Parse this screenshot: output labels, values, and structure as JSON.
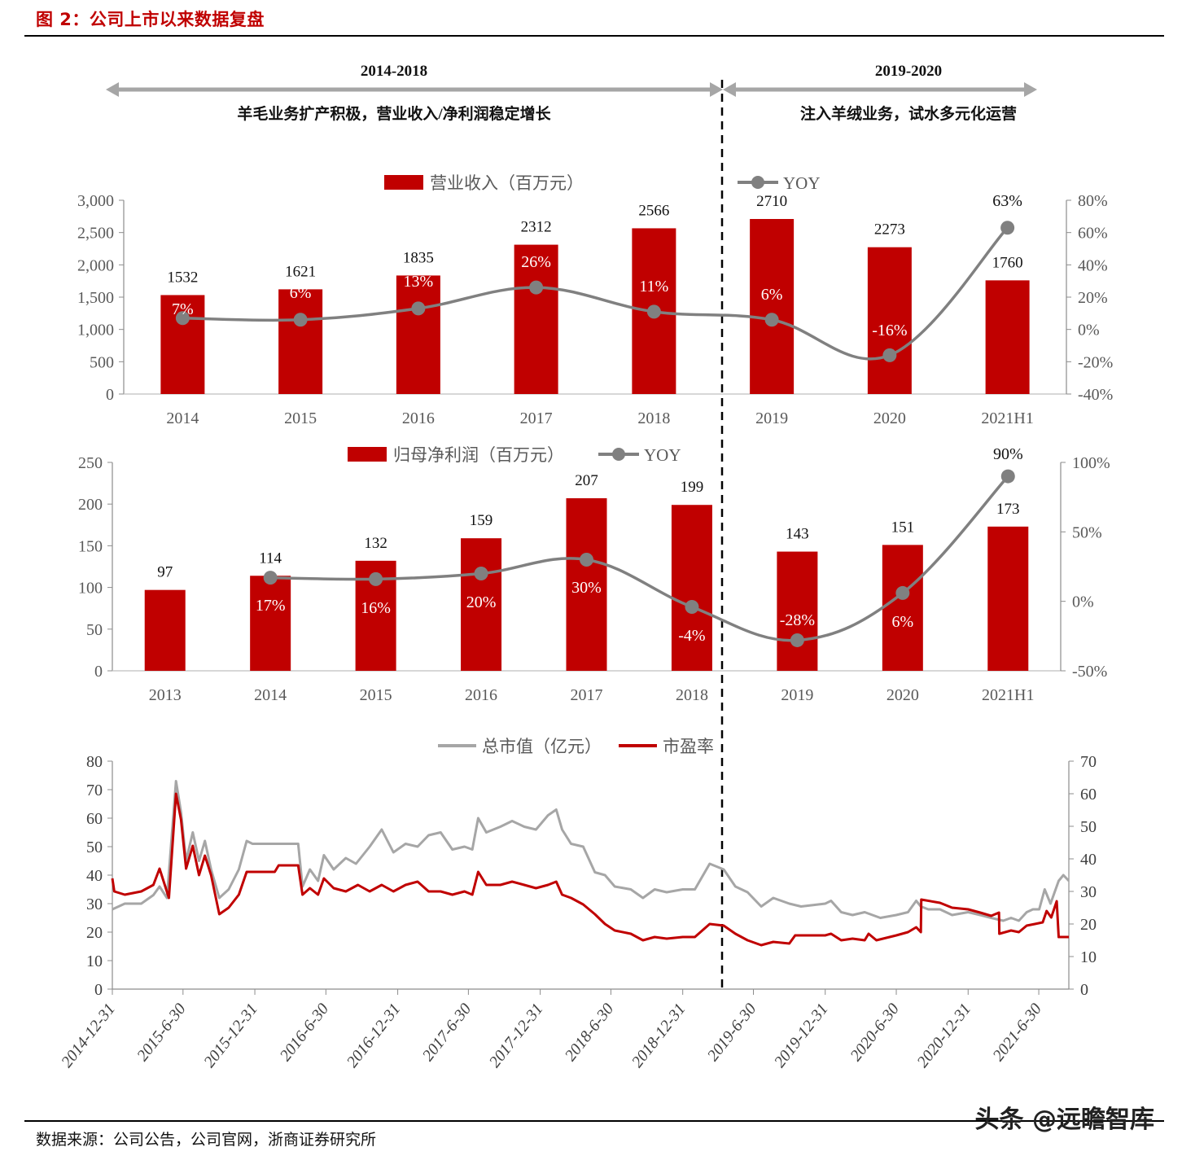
{
  "figure": {
    "title": "图 2：公司上市以来数据复盘",
    "source": "数据来源：公司公告，公司官网，浙商证券研究所",
    "watermark": "头条 @远瞻智库",
    "colors": {
      "bar": "#c00000",
      "yoy_line": "#808080",
      "market_cap": "#a6a6a6",
      "pe": "#c00000",
      "title": "#c00000"
    }
  },
  "timeline": {
    "periods": [
      {
        "label": "2014-2018",
        "description": "羊毛业务扩产积极，营业收入/净利润稳定增长"
      },
      {
        "label": "2019-2020",
        "description": "注入羊绒业务，试水多元化运营"
      }
    ]
  },
  "chart_data": [
    {
      "type": "bar",
      "title": "营业收入及YOY",
      "legend": [
        "营业收入（百万元）",
        "YOY"
      ],
      "legend_position": "top",
      "categories": [
        "2014",
        "2015",
        "2016",
        "2017",
        "2018",
        "2019",
        "2020",
        "2021H1"
      ],
      "series": [
        {
          "name": "营业收入（百万元）",
          "type": "bar",
          "axis": "left",
          "values": [
            1532,
            1621,
            1835,
            2312,
            2566,
            2710,
            2273,
            1760
          ],
          "labels": [
            "1532",
            "1621",
            "1835",
            "2312",
            "2566",
            "2710",
            "2273",
            "1760"
          ]
        },
        {
          "name": "YOY",
          "type": "line",
          "axis": "right",
          "values": [
            7,
            6,
            13,
            26,
            11,
            6,
            -16,
            63
          ],
          "labels": [
            "7%",
            "6%",
            "13%",
            "26%",
            "11%",
            "6%",
            "-16%",
            "63%"
          ]
        }
      ],
      "ylim": [
        0,
        3000
      ],
      "yticks": [
        "0",
        "500",
        "1,000",
        "1,500",
        "2,000",
        "2,500",
        "3,000"
      ],
      "y2lim": [
        -40,
        80
      ],
      "y2ticks": [
        "-40%",
        "-20%",
        "0%",
        "20%",
        "40%",
        "60%",
        "80%"
      ],
      "grid": false
    },
    {
      "type": "bar",
      "title": "归母净利润及YOY",
      "legend": [
        "归母净利润（百万元）",
        "YOY"
      ],
      "legend_position": "top",
      "categories": [
        "2013",
        "2014",
        "2015",
        "2016",
        "2017",
        "2018",
        "2019",
        "2020",
        "2021H1"
      ],
      "series": [
        {
          "name": "归母净利润（百万元）",
          "type": "bar",
          "axis": "left",
          "values": [
            97,
            114,
            132,
            159,
            207,
            199,
            143,
            151,
            173
          ],
          "labels": [
            "97",
            "114",
            "132",
            "159",
            "207",
            "199",
            "143",
            "151",
            "173"
          ]
        },
        {
          "name": "YOY",
          "type": "line",
          "axis": "right",
          "values": [
            null,
            17,
            16,
            20,
            30,
            -4,
            -28,
            6,
            90
          ],
          "labels": [
            "",
            "17%",
            "16%",
            "20%",
            "30%",
            "-4%",
            "-28%",
            "6%",
            "90%"
          ]
        }
      ],
      "ylim": [
        0,
        250
      ],
      "yticks": [
        "0",
        "50",
        "100",
        "150",
        "200",
        "250"
      ],
      "y2lim": [
        -50,
        100
      ],
      "y2ticks": [
        "-50%",
        "0%",
        "50%",
        "100%"
      ],
      "grid": false
    },
    {
      "type": "line",
      "title": "总市值与市盈率",
      "legend": [
        "总市值（亿元）",
        "市盈率"
      ],
      "legend_position": "top",
      "xlim": [
        "2014-12-31",
        "2021-09-15"
      ],
      "xticks": [
        "2014-12-31",
        "2015-6-30",
        "2015-12-31",
        "2016-6-30",
        "2016-12-31",
        "2017-6-30",
        "2017-12-31",
        "2018-6-30",
        "2018-12-31",
        "2019-6-30",
        "2019-12-31",
        "2020-6-30",
        "2020-12-31",
        "2021-6-30"
      ],
      "ylim": [
        0,
        80
      ],
      "yticks": [
        "0",
        "10",
        "20",
        "30",
        "40",
        "50",
        "60",
        "70",
        "80"
      ],
      "y2lim": [
        0,
        70
      ],
      "y2ticks": [
        "0",
        "10",
        "20",
        "30",
        "40",
        "50",
        "60",
        "70"
      ],
      "series": [
        {
          "name": "总市值（亿元）",
          "axis": "left",
          "points": [
            [
              "2014-12-31",
              28
            ],
            [
              "2015-02-01",
              30
            ],
            [
              "2015-03-15",
              30
            ],
            [
              "2015-04-15",
              33
            ],
            [
              "2015-05-01",
              36
            ],
            [
              "2015-05-20",
              32
            ],
            [
              "2015-06-12",
              73
            ],
            [
              "2015-06-25",
              62
            ],
            [
              "2015-07-08",
              45
            ],
            [
              "2015-07-25",
              55
            ],
            [
              "2015-08-10",
              45
            ],
            [
              "2015-08-25",
              52
            ],
            [
              "2015-09-10",
              42
            ],
            [
              "2015-10-01",
              32
            ],
            [
              "2015-10-25",
              35
            ],
            [
              "2015-11-20",
              42
            ],
            [
              "2015-12-10",
              52
            ],
            [
              "2015-12-25",
              51
            ],
            [
              "2016-03-01",
              51
            ],
            [
              "2016-04-20",
              51
            ],
            [
              "2016-05-01",
              36
            ],
            [
              "2016-05-20",
              42
            ],
            [
              "2016-06-10",
              38
            ],
            [
              "2016-06-25",
              47
            ],
            [
              "2016-07-20",
              42
            ],
            [
              "2016-08-20",
              46
            ],
            [
              "2016-09-15",
              44
            ],
            [
              "2016-10-20",
              50
            ],
            [
              "2016-11-20",
              56
            ],
            [
              "2016-12-20",
              48
            ],
            [
              "2017-01-20",
              51
            ],
            [
              "2017-02-20",
              50
            ],
            [
              "2017-03-20",
              54
            ],
            [
              "2017-04-20",
              55
            ],
            [
              "2017-05-20",
              49
            ],
            [
              "2017-06-20",
              50
            ],
            [
              "2017-07-10",
              49
            ],
            [
              "2017-07-25",
              60
            ],
            [
              "2017-08-15",
              55
            ],
            [
              "2017-09-20",
              57
            ],
            [
              "2017-10-20",
              59
            ],
            [
              "2017-11-20",
              57
            ],
            [
              "2017-12-20",
              56
            ],
            [
              "2018-01-20",
              61
            ],
            [
              "2018-02-10",
              63
            ],
            [
              "2018-02-25",
              56
            ],
            [
              "2018-03-20",
              51
            ],
            [
              "2018-04-20",
              50
            ],
            [
              "2018-05-20",
              41
            ],
            [
              "2018-06-15",
              40
            ],
            [
              "2018-07-10",
              36
            ],
            [
              "2018-08-20",
              35
            ],
            [
              "2018-09-20",
              32
            ],
            [
              "2018-10-20",
              35
            ],
            [
              "2018-11-20",
              34
            ],
            [
              "2018-12-31",
              35
            ],
            [
              "2019-01-31",
              35
            ],
            [
              "2019-03-10",
              44
            ],
            [
              "2019-04-15",
              42
            ],
            [
              "2019-05-15",
              36
            ],
            [
              "2019-06-15",
              34
            ],
            [
              "2019-07-20",
              29
            ],
            [
              "2019-08-20",
              32
            ],
            [
              "2019-09-30",
              30
            ],
            [
              "2019-10-30",
              29
            ],
            [
              "2019-12-31",
              30
            ],
            [
              "2020-01-15",
              31
            ],
            [
              "2020-02-10",
              27
            ],
            [
              "2020-03-10",
              26
            ],
            [
              "2020-04-10",
              27
            ],
            [
              "2020-05-20",
              25
            ],
            [
              "2020-06-30",
              26
            ],
            [
              "2020-07-30",
              27
            ],
            [
              "2020-08-20",
              31
            ],
            [
              "2020-09-01",
              29
            ],
            [
              "2020-09-20",
              28
            ],
            [
              "2020-10-20",
              28
            ],
            [
              "2020-11-20",
              26
            ],
            [
              "2020-12-31",
              27
            ],
            [
              "2021-01-31",
              26
            ],
            [
              "2021-02-28",
              25
            ],
            [
              "2021-03-31",
              24
            ],
            [
              "2021-04-20",
              25
            ],
            [
              "2021-05-10",
              24
            ],
            [
              "2021-05-30",
              27
            ],
            [
              "2021-06-15",
              28
            ],
            [
              "2021-07-01",
              28
            ],
            [
              "2021-07-15",
              35
            ],
            [
              "2021-07-30",
              30
            ],
            [
              "2021-08-20",
              38
            ],
            [
              "2021-09-01",
              40
            ],
            [
              "2021-09-15",
              38
            ]
          ]
        },
        {
          "name": "市盈率",
          "axis": "right",
          "points": [
            [
              "2014-12-31",
              34
            ],
            [
              "2015-01-05",
              30
            ],
            [
              "2015-02-01",
              29
            ],
            [
              "2015-03-15",
              30
            ],
            [
              "2015-04-15",
              32
            ],
            [
              "2015-05-01",
              37
            ],
            [
              "2015-05-25",
              28
            ],
            [
              "2015-06-12",
              60
            ],
            [
              "2015-06-25",
              52
            ],
            [
              "2015-07-08",
              37
            ],
            [
              "2015-07-25",
              44
            ],
            [
              "2015-08-10",
              35
            ],
            [
              "2015-08-25",
              41
            ],
            [
              "2015-09-10",
              35
            ],
            [
              "2015-10-01",
              23
            ],
            [
              "2015-10-25",
              25
            ],
            [
              "2015-11-20",
              29
            ],
            [
              "2015-12-10",
              36
            ],
            [
              "2015-12-25",
              36
            ],
            [
              "2016-02-20",
              36
            ],
            [
              "2016-03-01",
              38
            ],
            [
              "2016-04-20",
              38
            ],
            [
              "2016-05-01",
              29
            ],
            [
              "2016-05-20",
              31
            ],
            [
              "2016-06-10",
              29
            ],
            [
              "2016-06-25",
              34
            ],
            [
              "2016-07-20",
              31
            ],
            [
              "2016-08-20",
              30
            ],
            [
              "2016-09-20",
              32
            ],
            [
              "2016-10-20",
              30
            ],
            [
              "2016-11-20",
              32
            ],
            [
              "2016-12-20",
              30
            ],
            [
              "2017-01-20",
              32
            ],
            [
              "2017-02-20",
              33
            ],
            [
              "2017-03-20",
              30
            ],
            [
              "2017-04-20",
              30
            ],
            [
              "2017-05-20",
              29
            ],
            [
              "2017-06-20",
              30
            ],
            [
              "2017-07-10",
              29
            ],
            [
              "2017-07-25",
              36
            ],
            [
              "2017-08-15",
              32
            ],
            [
              "2017-09-20",
              32
            ],
            [
              "2017-10-20",
              33
            ],
            [
              "2017-11-20",
              32
            ],
            [
              "2017-12-20",
              31
            ],
            [
              "2018-01-20",
              32
            ],
            [
              "2018-02-10",
              33
            ],
            [
              "2018-02-25",
              29
            ],
            [
              "2018-03-20",
              28
            ],
            [
              "2018-04-20",
              26
            ],
            [
              "2018-05-20",
              23
            ],
            [
              "2018-06-15",
              20
            ],
            [
              "2018-07-10",
              18
            ],
            [
              "2018-08-20",
              17
            ],
            [
              "2018-09-20",
              15
            ],
            [
              "2018-10-20",
              16
            ],
            [
              "2018-11-20",
              15.5
            ],
            [
              "2018-12-31",
              16
            ],
            [
              "2019-01-31",
              16
            ],
            [
              "2019-03-10",
              20
            ],
            [
              "2019-04-15",
              19.5
            ],
            [
              "2019-05-15",
              17
            ],
            [
              "2019-06-15",
              15
            ],
            [
              "2019-07-20",
              13.5
            ],
            [
              "2019-08-20",
              14.5
            ],
            [
              "2019-09-30",
              14
            ],
            [
              "2019-10-15",
              16.5
            ],
            [
              "2019-12-31",
              16.5
            ],
            [
              "2020-01-15",
              17
            ],
            [
              "2020-02-10",
              15
            ],
            [
              "2020-03-10",
              15.5
            ],
            [
              "2020-04-10",
              15
            ],
            [
              "2020-04-20",
              17
            ],
            [
              "2020-05-10",
              15
            ],
            [
              "2020-06-30",
              16.5
            ],
            [
              "2020-07-30",
              17.5
            ],
            [
              "2020-08-20",
              19
            ],
            [
              "2020-09-01",
              17.5
            ],
            [
              "2020-09-02",
              27.5
            ],
            [
              "2020-10-20",
              26.5
            ],
            [
              "2020-11-20",
              25
            ],
            [
              "2020-12-31",
              24.5
            ],
            [
              "2021-01-31",
              23.5
            ],
            [
              "2021-02-28",
              22.5
            ],
            [
              "2021-03-20",
              23.5
            ],
            [
              "2021-03-21",
              17
            ],
            [
              "2021-04-20",
              18
            ],
            [
              "2021-05-10",
              17.5
            ],
            [
              "2021-05-30",
              19.5
            ],
            [
              "2021-06-20",
              20
            ],
            [
              "2021-07-10",
              20.5
            ],
            [
              "2021-07-20",
              24
            ],
            [
              "2021-08-01",
              22
            ],
            [
              "2021-08-15",
              27
            ],
            [
              "2021-08-20",
              16
            ],
            [
              "2021-09-15",
              16
            ]
          ]
        }
      ],
      "grid": false
    }
  ]
}
